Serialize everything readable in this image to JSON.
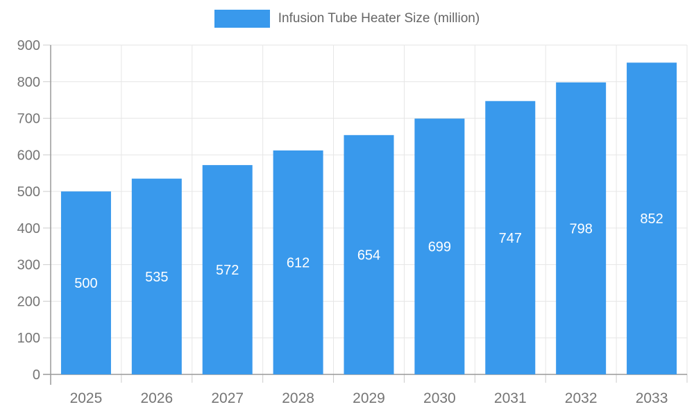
{
  "legend": {
    "label": "Infusion Tube Heater Size (million)"
  },
  "colors": {
    "bar": "#3999EC",
    "grid": "#E6E6E6",
    "axis_line": "#999999",
    "tick_mark": "#CCCCCC",
    "axis_label": "#757575",
    "value_label": "#FFFFFF",
    "legend_text": "#666666",
    "background": "#FFFFFF"
  },
  "chart_data": {
    "type": "bar",
    "title": "Infusion Tube Heater Size (million)",
    "categories": [
      "2025",
      "2026",
      "2027",
      "2028",
      "2029",
      "2030",
      "2031",
      "2032",
      "2033"
    ],
    "values": [
      500,
      535,
      572,
      612,
      654,
      699,
      747,
      798,
      852
    ],
    "xlabel": "",
    "ylabel": "",
    "ylim": [
      0,
      900
    ],
    "ytick_step": 100,
    "yticks": [
      0,
      100,
      200,
      300,
      400,
      500,
      600,
      700,
      800,
      900
    ],
    "grid": true,
    "legend_position": "top",
    "value_labels": "inside-center"
  }
}
